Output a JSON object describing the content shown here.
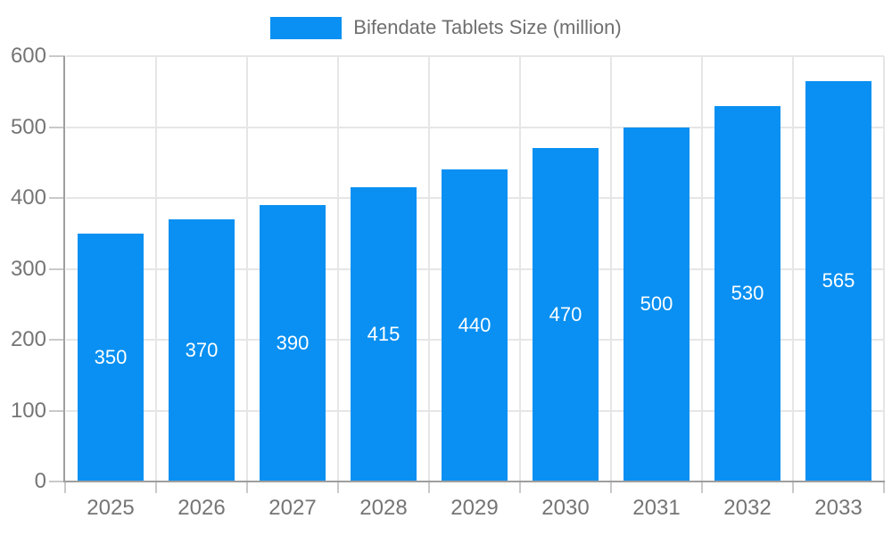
{
  "legend": {
    "label": "Bifendate Tablets Size (million)"
  },
  "colors": {
    "bar": "#0990f2",
    "bar_label": "#ffffff",
    "axis_label": "#757575",
    "legend_text": "#6f6f6f",
    "gridline": "#e6e6e6",
    "tick": "#c9c9c9",
    "axis_line": "#9e9e9e",
    "background": "#ffffff"
  },
  "chart_data": {
    "type": "bar",
    "title": "",
    "categories": [
      "2025",
      "2026",
      "2027",
      "2028",
      "2029",
      "2030",
      "2031",
      "2032",
      "2033"
    ],
    "series": [
      {
        "name": "Bifendate Tablets Size (million)",
        "values": [
          350,
          370,
          390,
          415,
          440,
          470,
          500,
          530,
          565
        ]
      }
    ],
    "xlabel": "",
    "ylabel": "",
    "ylim": [
      0,
      600
    ],
    "yticks": [
      0,
      100,
      200,
      300,
      400,
      500,
      600
    ],
    "grid": true,
    "legend_position": "top-center",
    "value_label_position": "inside-middle"
  }
}
